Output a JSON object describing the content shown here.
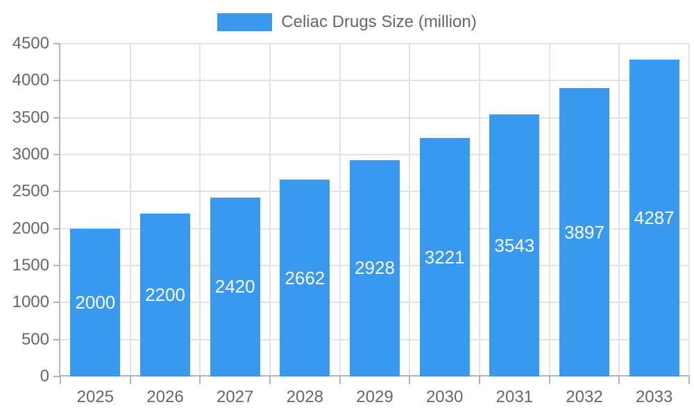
{
  "chart_data": {
    "type": "bar",
    "title": "Celiac Drugs Size (million)",
    "legend_position": "top",
    "categories": [
      "2025",
      "2026",
      "2027",
      "2028",
      "2029",
      "2030",
      "2031",
      "2032",
      "2033"
    ],
    "values": [
      2000,
      2200,
      2420,
      2662,
      2928,
      3221,
      3543,
      3897,
      4287
    ],
    "data_labels_shown": true,
    "xlabel": "",
    "ylabel": "",
    "ylim": [
      0,
      4500
    ],
    "ytick_step": 500,
    "grid": true,
    "colors": {
      "bar": "#3899ee",
      "bar_label": "#ffffff",
      "axis_text": "#666666",
      "legend_text": "#666666",
      "grid_line": "#e2e2e2",
      "axis_line": "#b3b3b3",
      "background": "#ffffff"
    }
  }
}
